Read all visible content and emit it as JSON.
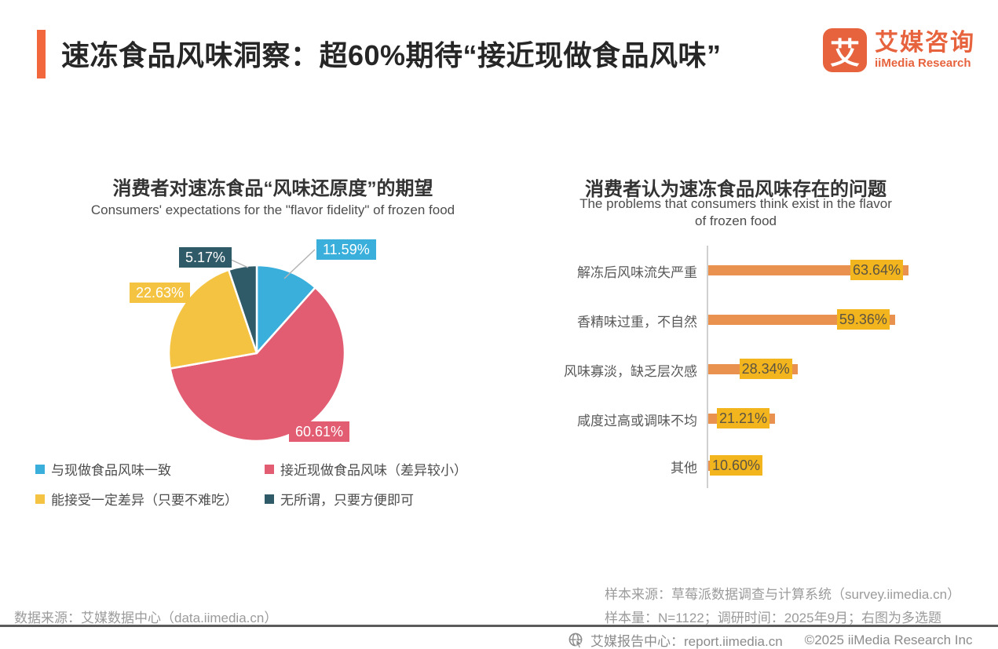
{
  "header": {
    "title": "速冻食品风味洞察：超60%期待“接近现做食品风味”",
    "accent_color": "#F2683C",
    "logo": {
      "glyph": "艾",
      "name_cn": "艾媒咨询",
      "name_en": "iiMedia Research",
      "brand_color": "#E7633D"
    }
  },
  "chart_data": [
    {
      "type": "pie",
      "title": "消费者对速冻食品“风味还原度”的期望",
      "subtitle": "Consumers' expectations for the \"flavor fidelity\" of frozen food",
      "labels": [
        "与现做食品风味一致",
        "接近现做食品风味（差异较小）",
        "能接受一定差异（只要不难吃）",
        "无所谓，只要方便即可"
      ],
      "values": [
        11.59,
        60.61,
        22.63,
        5.17
      ],
      "colors": [
        "#3AAFDC",
        "#E25C72",
        "#F5C342",
        "#2F5A68"
      ],
      "value_labels": [
        "11.59%",
        "60.61%",
        "22.63%",
        "5.17%"
      ],
      "start_angle_deg": 0,
      "direction": "clockwise",
      "legend_position": "bottom"
    },
    {
      "type": "bar",
      "orientation": "horizontal",
      "title": "消费者认为速冻食品风味存在的问题",
      "subtitle_lines": [
        "The problems that consumers think exist in the flavor",
        "of frozen food"
      ],
      "categories": [
        "解冻后风味流失严重",
        "香精味过重，不自然",
        "风味寡淡，缺乏层次感",
        "咸度过高或调味不均",
        "其他"
      ],
      "values": [
        63.64,
        59.36,
        28.34,
        21.21,
        10.6
      ],
      "value_labels": [
        "63.64%",
        "59.36%",
        "28.34%",
        "21.21%",
        "10.60%"
      ],
      "xlim": [
        0,
        70
      ],
      "bar_color": "#E9914E",
      "value_label_bg": "#F2B51D",
      "value_label_text_color": "#5C5342",
      "grid": false
    }
  ],
  "footer": {
    "data_source": "数据来源：艾媒数据中心（data.iimedia.cn）",
    "sample_source": "样本来源：草莓派数据调查与计算系统（survey.iimedia.cn）",
    "sample_info": "样本量：N=1122；调研时间：2025年9月；右图为多选题",
    "report_center": "艾媒报告中心：report.iimedia.cn",
    "copyright": "©2025  iiMedia Research  Inc"
  }
}
